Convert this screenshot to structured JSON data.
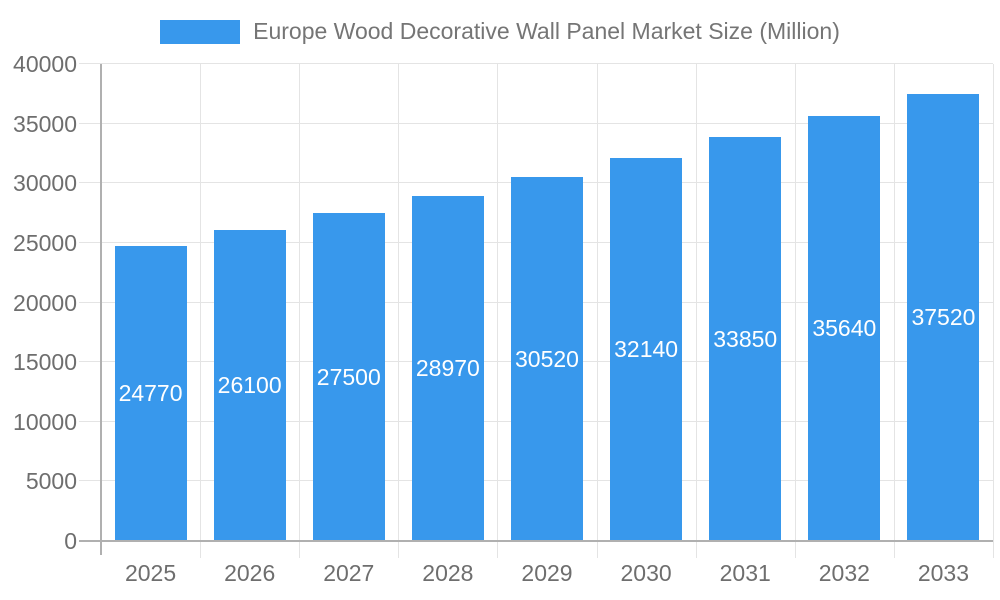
{
  "legend": {
    "series_label": "Europe Wood Decorative Wall Panel Market Size (Million)"
  },
  "chart_data": {
    "type": "bar",
    "title": "Europe Wood Decorative Wall Panel Market Size (Million)",
    "categories": [
      "2025",
      "2026",
      "2027",
      "2028",
      "2029",
      "2030",
      "2031",
      "2032",
      "2033"
    ],
    "values": [
      24770,
      26100,
      27500,
      28970,
      30520,
      32140,
      33850,
      35640,
      37520
    ],
    "xlabel": "",
    "ylabel": "",
    "ylim": [
      0,
      40000
    ],
    "ytick_step": 5000,
    "y_tick_labels": [
      "0",
      "5000",
      "10000",
      "15000",
      "20000",
      "25000",
      "30000",
      "35000",
      "40000"
    ],
    "grid": true,
    "legend_position": "top",
    "value_label_position": "inside-center",
    "colors": {
      "bar": "#3898ec",
      "value_label": "#ffffff",
      "axis_label": "#6e6e6e",
      "grid": "#e4e4e4",
      "axis_line": "#b0b0b0",
      "title": "#757575"
    }
  }
}
